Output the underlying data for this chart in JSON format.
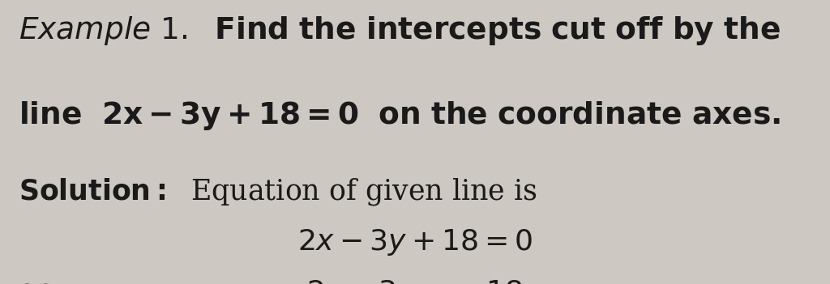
{
  "background_color": "#cdc8c2",
  "text_color": "#1a1a1a",
  "font_size_title": 27,
  "font_size_body": 25,
  "font_size_math": 26
}
